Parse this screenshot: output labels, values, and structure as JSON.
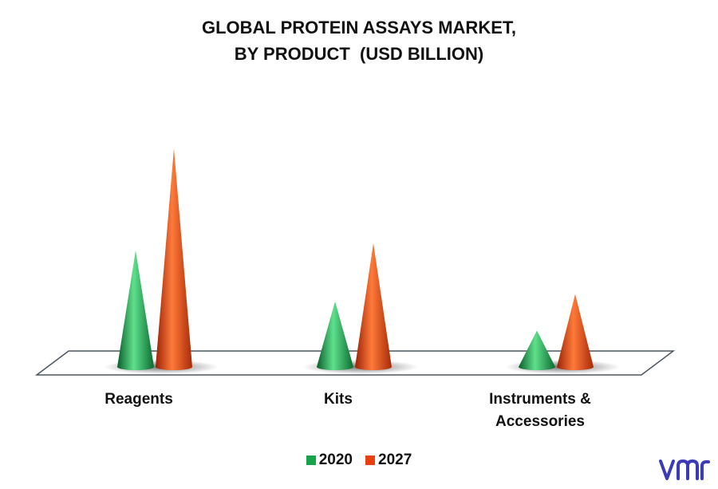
{
  "title_line1": "GLOBAL PROTEIN ASSAYS MARKET,",
  "title_line2": "BY PRODUCT  (USD BILLION)",
  "chart_data": {
    "type": "bar",
    "categories": [
      "Reagents",
      "Kits",
      "Instruments & Accessories"
    ],
    "category_lines": [
      [
        "Reagents"
      ],
      [
        "Kits"
      ],
      [
        "Instruments &",
        "Accessories"
      ]
    ],
    "series": [
      {
        "name": "2020",
        "values": [
          1.6,
          0.9,
          0.5
        ],
        "color": "#17a34a"
      },
      {
        "name": "2027",
        "values": [
          3.0,
          1.7,
          1.0
        ],
        "color": "#e8400e"
      }
    ],
    "ylim": [
      0,
      3.2
    ],
    "grid": false,
    "legend_position": "bottom",
    "mark_shape": "cone"
  },
  "legend": {
    "item1": "2020",
    "item2": "2027"
  },
  "logo_icon": "vmr-logo-icon"
}
